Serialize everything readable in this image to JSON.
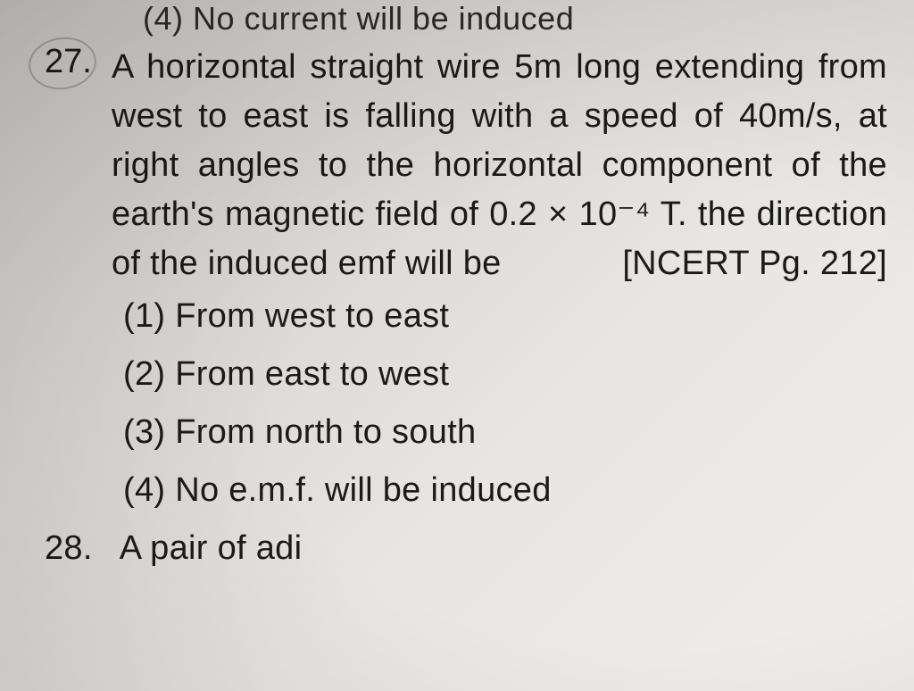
{
  "partial_top": "(4) No current will be induced",
  "question": {
    "number": "27.",
    "text_lines": [
      "A horizontal straight wire 5m long extending",
      "from west to east is falling with a speed of",
      "40m/s, at right angles to the horizontal",
      "component of the earth's magnetic field of",
      "0.2 × 10⁻⁴ T. the direction of the induced emf",
      "will be"
    ],
    "reference": "[NCERT Pg. 212]",
    "options": [
      {
        "num": "(1)",
        "text": "From west to east"
      },
      {
        "num": "(2)",
        "text": "From east to west"
      },
      {
        "num": "(3)",
        "text": "From north to south"
      },
      {
        "num": "(4)",
        "text": "No e.m.f. will be induced"
      }
    ]
  },
  "partial_bottom": {
    "number": "28.",
    "text": "A pair of adi"
  },
  "style": {
    "background_color": "#e8e6e3",
    "text_color": "#1a1a1a",
    "base_fontsize_pt": 28,
    "font_family": "Arial",
    "line_height": 1.45
  }
}
